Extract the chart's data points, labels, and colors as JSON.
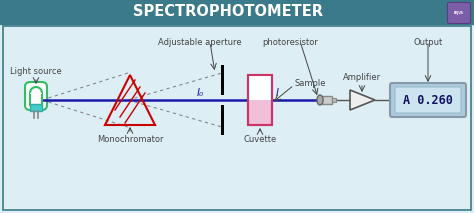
{
  "title": "SPECTROPHOTOMETER",
  "title_bg": "#3a7a8a",
  "title_color": "white",
  "bg_color": "#ddeef5",
  "border_color": "#3a7a8a",
  "labels": {
    "light_source": "Light source",
    "adjustable_aperture": "Adjustable aperture",
    "monochromator": "Monochromator",
    "cuvette": "Cuvette",
    "sample": "Sample",
    "photoresistor": "photoresistor",
    "amplifier": "Amplifier",
    "output": "Output",
    "I0": "I₀",
    "I": "I"
  },
  "display_text": "A 0.260",
  "label_fontsize": 6.0,
  "title_fontsize": 10.5,
  "beam_color": "#1a1aaa",
  "label_color": "#444444"
}
